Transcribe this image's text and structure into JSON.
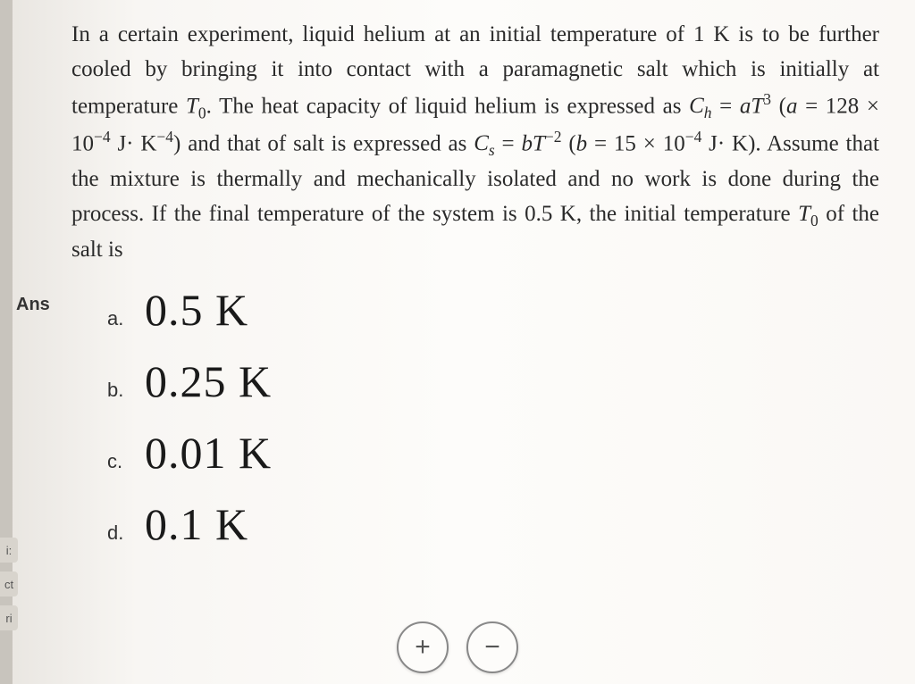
{
  "question": {
    "html": "In a certain experiment, liquid helium at an initial temperature of 1 K is to be further cooled by bringing it into contact with a paramagnetic salt which is initially at temperature <i class='var'>T</i><sub>0</sub>. The heat capacity of liquid helium is expressed as <i class='var'>C<sub>h</sub></i> = <i class='var'>aT</i><sup>3</sup> (<i class='var'>a</i> = 128 × 10<sup>−4</sup> J· K<sup>−4</sup>) and that of salt is expressed as <i class='var'>C<sub>s</sub></i> = <i class='var'>bT</i><sup>−2</sup> (<i class='var'>b</i> = 15 × 10<sup>−4</sup> J· K). Assume that the mixture is thermally and mechanically isolated and no work is done during the process. If the final temperature of the system is 0.5 K, the initial temperature <i class='var'>T</i><sub>0</sub> of the salt is"
  },
  "ans_label": "Ans",
  "options": [
    {
      "letter": "a.",
      "text": "0.5 K"
    },
    {
      "letter": "b.",
      "text": "0.25 K"
    },
    {
      "letter": "c.",
      "text": "0.01 K"
    },
    {
      "letter": "d.",
      "text": "0.1 K"
    }
  ],
  "zoom": {
    "in": "+",
    "out": "−"
  },
  "side_tabs": [
    "i:",
    "ct",
    "ri"
  ]
}
